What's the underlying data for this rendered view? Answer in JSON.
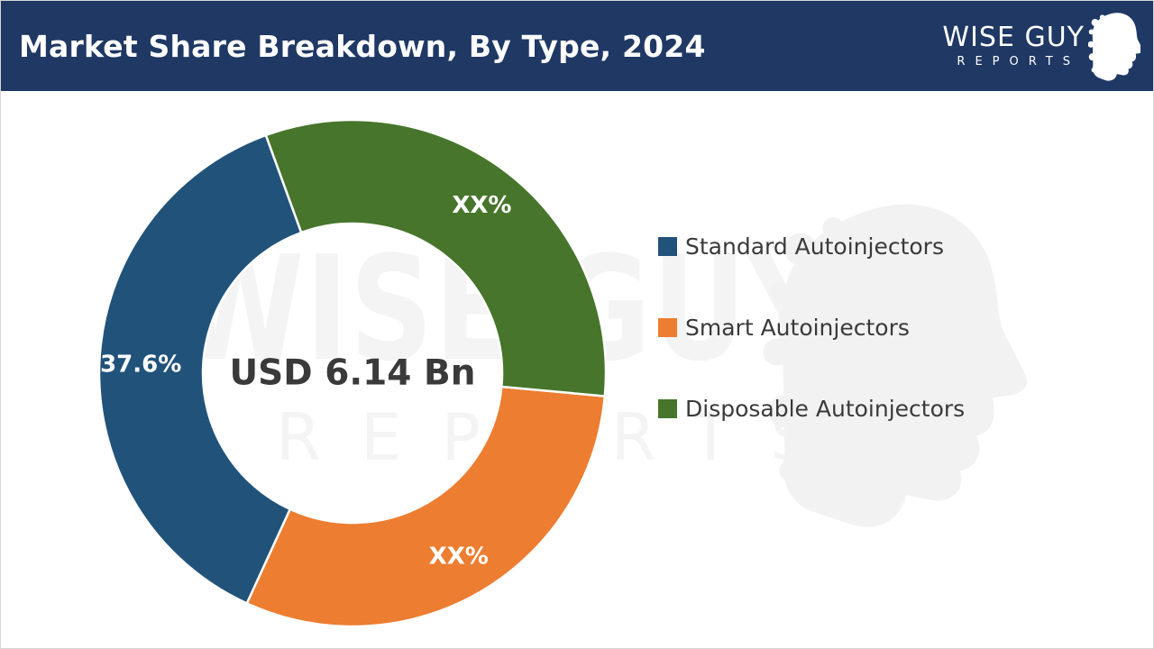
{
  "header": {
    "logo": {
      "line1": "WISE GUY",
      "line2": "REPORTS"
    }
  },
  "watermark": {
    "line1": "WISE GUY",
    "line2": "REPORTS"
  },
  "chart_data": {
    "type": "pie",
    "subtype": "donut",
    "title": "Market Share Breakdown, By Type, 2024",
    "center_label": "USD 6.14 Bn",
    "start_angle_deg": 110,
    "direction": "counterclockwise",
    "inner_radius_ratio": 0.59,
    "legend_position": "right",
    "segments": [
      {
        "name": "Standard Autoinjectors",
        "label": "37.6%",
        "value_pct": 37.6,
        "color": "#21527A"
      },
      {
        "name": "Smart Autoinjectors",
        "label": "XX%",
        "value_pct": 30.4,
        "color": "#ED7D31"
      },
      {
        "name": "Disposable Autoinjectors",
        "label": "XX%",
        "value_pct": 32.0,
        "color": "#47752B"
      }
    ]
  },
  "colors": {
    "header_bg": "#1F3864",
    "title_text": "#FFFFFF",
    "center_text": "#3A3A3A",
    "legend_text": "#3A3A3A",
    "watermark": "#F4F4F4",
    "page_border": "#D6D6D6"
  }
}
